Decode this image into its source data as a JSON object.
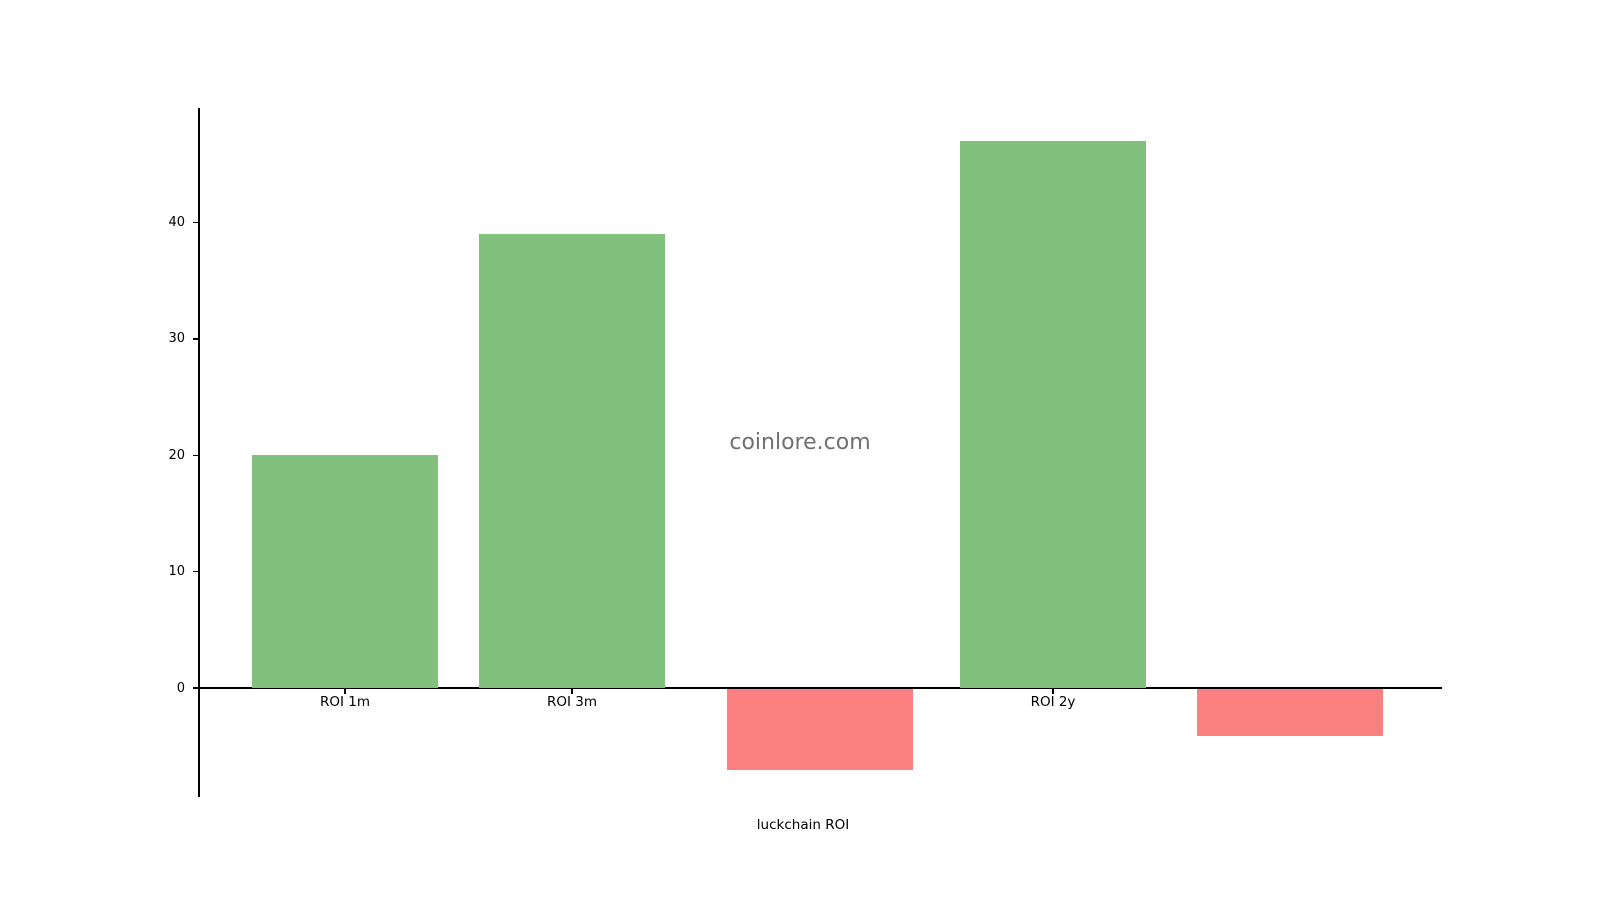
{
  "watermark": "coinlore.com",
  "chart_data": {
    "type": "bar",
    "title": "luckchain ROI",
    "categories": [
      "ROI 1m",
      "ROI 3m",
      "",
      "ROI 2y",
      ""
    ],
    "values": [
      20,
      39,
      -7,
      47,
      -4
    ],
    "bar_colors": [
      "#81c17d",
      "#81c17d",
      "#fd8080",
      "#81c17d",
      "#fd8080"
    ],
    "positive_color": "#81c17d",
    "negative_color": "#fd8080",
    "y_ticks": [
      0,
      10,
      20,
      30,
      40
    ],
    "ylim": [
      -9.4,
      49.8
    ],
    "xlabel": "",
    "ylabel": "",
    "grid": false,
    "legend_position": "none",
    "axis_color": "#000000",
    "watermark_color": "#707070",
    "watermark_text": "coinlore.com",
    "background_color": "#ffffff"
  }
}
